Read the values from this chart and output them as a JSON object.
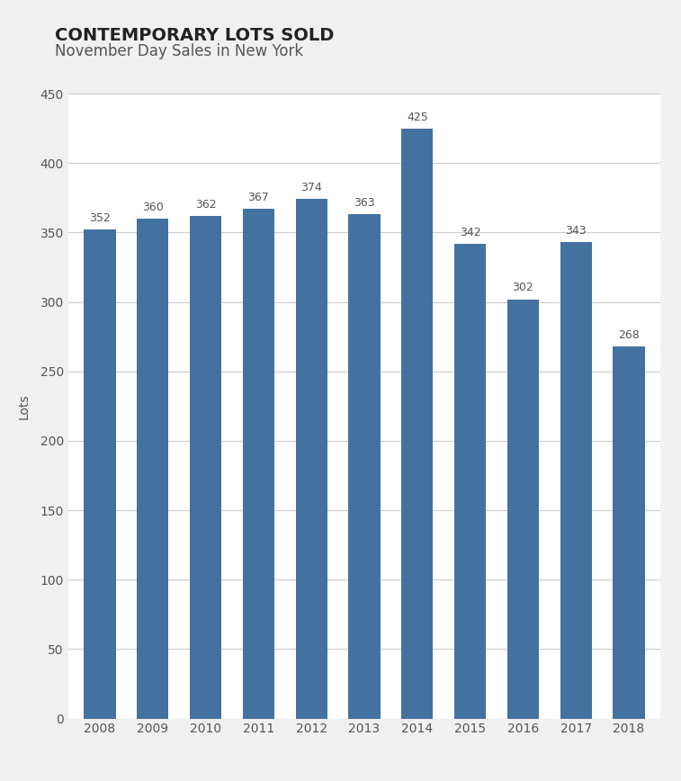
{
  "title": "CONTEMPORARY LOTS SOLD",
  "subtitle": "November Day Sales in New York",
  "ylabel": "Lots",
  "categories": [
    "2008",
    "2009",
    "2010",
    "2011",
    "2012",
    "2013",
    "2014",
    "2015",
    "2016",
    "2017",
    "2018"
  ],
  "values": [
    352,
    360,
    362,
    367,
    374,
    363,
    425,
    342,
    302,
    343,
    268
  ],
  "bar_color": "#4472a0",
  "ylim": [
    0,
    450
  ],
  "yticks": [
    0,
    50,
    100,
    150,
    200,
    250,
    300,
    350,
    400,
    450
  ],
  "background_color": "#f0f0f0",
  "plot_bg_color": "#ffffff",
  "title_fontsize": 14,
  "subtitle_fontsize": 12,
  "label_fontsize": 10,
  "tick_fontsize": 10,
  "bar_label_fontsize": 9
}
